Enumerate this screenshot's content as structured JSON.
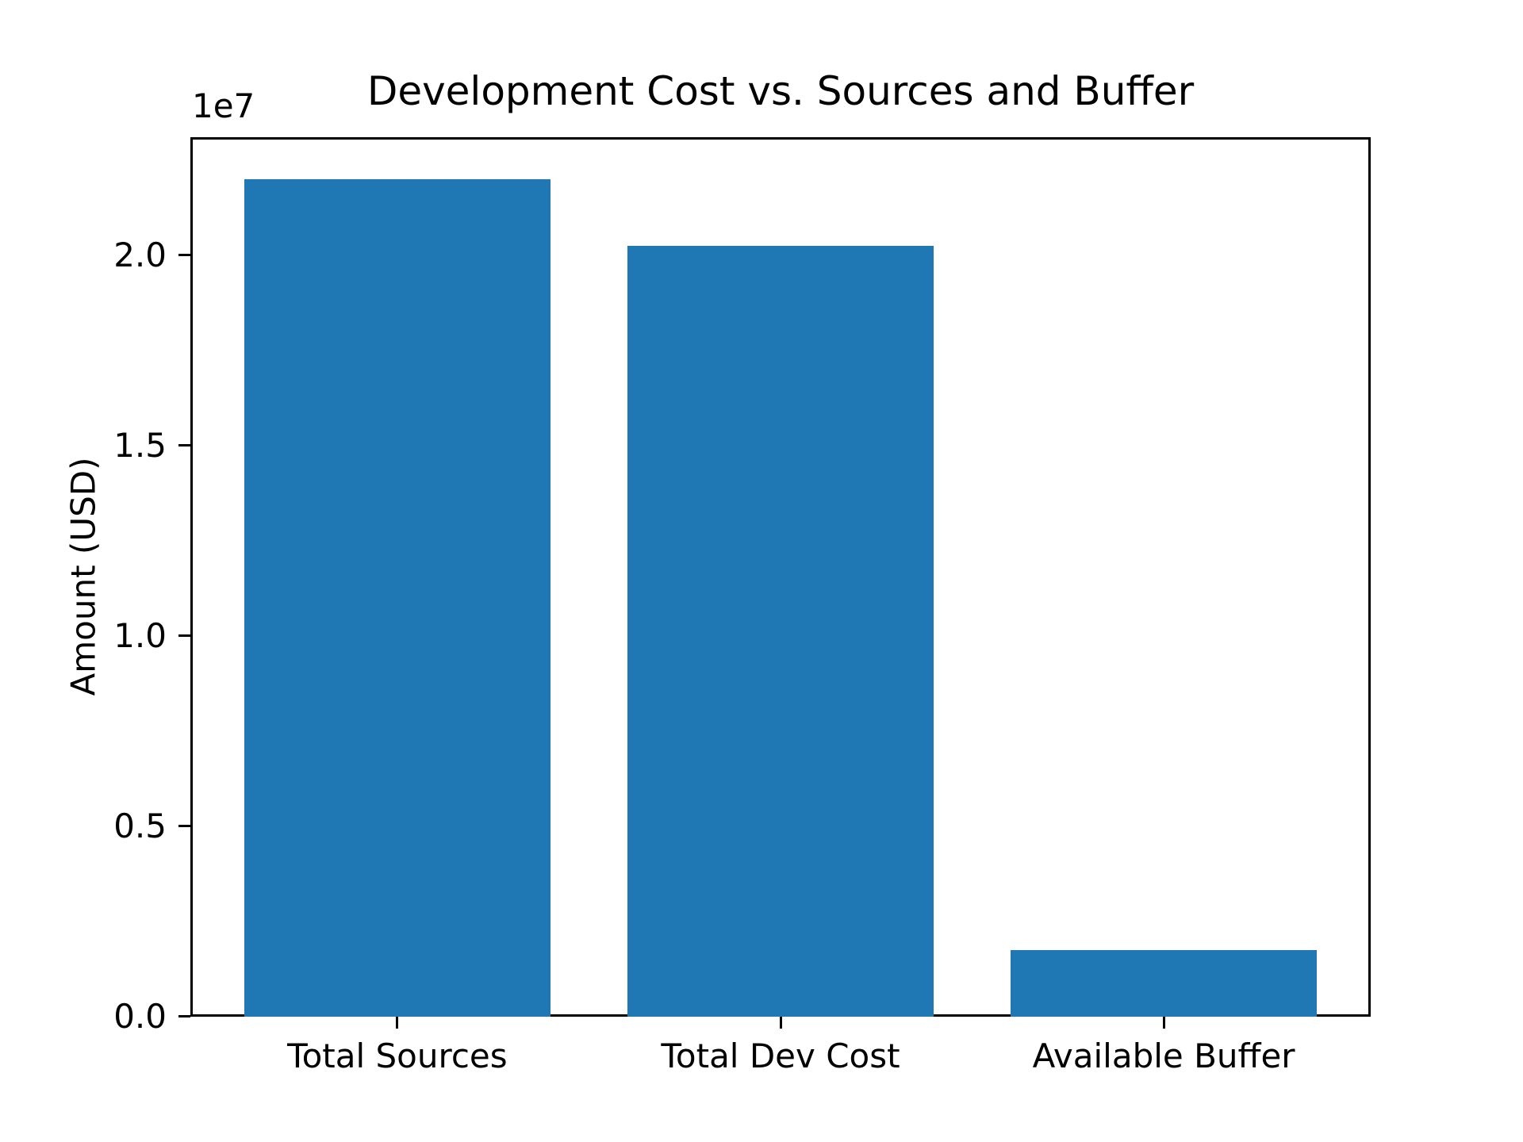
{
  "figure": {
    "background": "#ffffff",
    "text_color": "#000000"
  },
  "chart_data": {
    "type": "bar",
    "title": "Development Cost vs. Sources and Buffer",
    "categories": [
      "Total Sources",
      "Total Dev Cost",
      "Available Buffer"
    ],
    "values": [
      22000000,
      20250000,
      1750000
    ],
    "xlabel": "",
    "ylabel": "Amount (USD)",
    "ylim": [
      0,
      23100000
    ],
    "yticks": [
      0,
      5000000,
      10000000,
      15000000,
      20000000
    ],
    "ytick_labels": [
      "0.0",
      "0.5",
      "1.0",
      "1.5",
      "2.0"
    ],
    "offset_text": "1e7",
    "bar_color": "#1f77b4",
    "bar_width_fraction": 0.8,
    "grid": false,
    "legend_position": "none"
  }
}
